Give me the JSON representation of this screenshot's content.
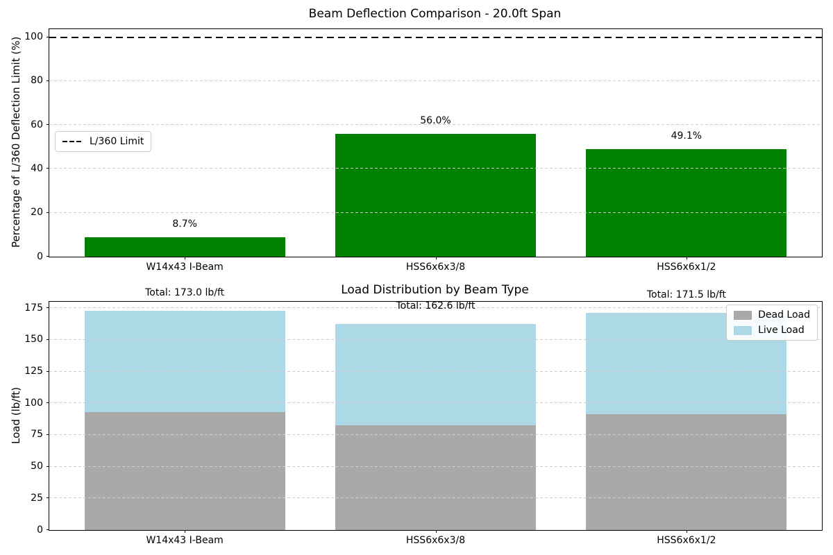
{
  "figure": {
    "background": "#ffffff"
  },
  "chart_data": [
    {
      "type": "bar",
      "title": "Beam Deflection Comparison - 20.0ft Span",
      "ylabel": "Percentage of L/360 Deflection Limit (%)",
      "xlabel": "",
      "categories": [
        "W14x43 I-Beam",
        "HSS6x6x3/8",
        "HSS6x6x1/2"
      ],
      "values": [
        8.7,
        56.0,
        49.1
      ],
      "bar_labels": [
        "8.7%",
        "56.0%",
        "49.1%"
      ],
      "bar_color": "#008000",
      "yticks": [
        0,
        20,
        40,
        60,
        80,
        100
      ],
      "ylim": [
        0,
        103.7
      ],
      "xlim": [
        -0.54,
        2.54
      ],
      "bar_width": 0.8,
      "grid": "dashed-horizontal",
      "ref_line": {
        "value": 100,
        "color": "#000000",
        "style": "dashed",
        "label": "L/360 Limit"
      },
      "legend": {
        "position": "center-left",
        "entries": [
          {
            "label": "L/360 Limit",
            "swatch": "dashed-line",
            "color": "#000000"
          }
        ]
      }
    },
    {
      "type": "stacked-bar",
      "title": "Load Distribution by Beam Type",
      "ylabel": "Load (lb/ft)",
      "xlabel": "",
      "categories": [
        "W14x43 I-Beam",
        "HSS6x6x3/8",
        "HSS6x6x1/2"
      ],
      "series": [
        {
          "name": "Dead Load",
          "color": "#a9a9a9",
          "values": [
            93.0,
            82.6,
            91.5
          ]
        },
        {
          "name": "Live Load",
          "color": "#add8e6",
          "values": [
            80.0,
            80.0,
            80.0
          ]
        }
      ],
      "totals": [
        173.0,
        162.6,
        171.5
      ],
      "total_labels": [
        "Total: 173.0 lb/ft",
        "Total: 162.6 lb/ft",
        "Total: 171.5 lb/ft"
      ],
      "yticks": [
        0,
        25,
        50,
        75,
        100,
        125,
        150,
        175
      ],
      "ylim": [
        0,
        180
      ],
      "xlim": [
        -0.54,
        2.54
      ],
      "bar_width": 0.8,
      "grid": "dashed-horizontal",
      "legend": {
        "position": "top-right",
        "entries": [
          {
            "label": "Dead Load",
            "swatch": "patch",
            "color": "#a9a9a9"
          },
          {
            "label": "Live Load",
            "swatch": "patch",
            "color": "#add8e6"
          }
        ]
      }
    }
  ]
}
